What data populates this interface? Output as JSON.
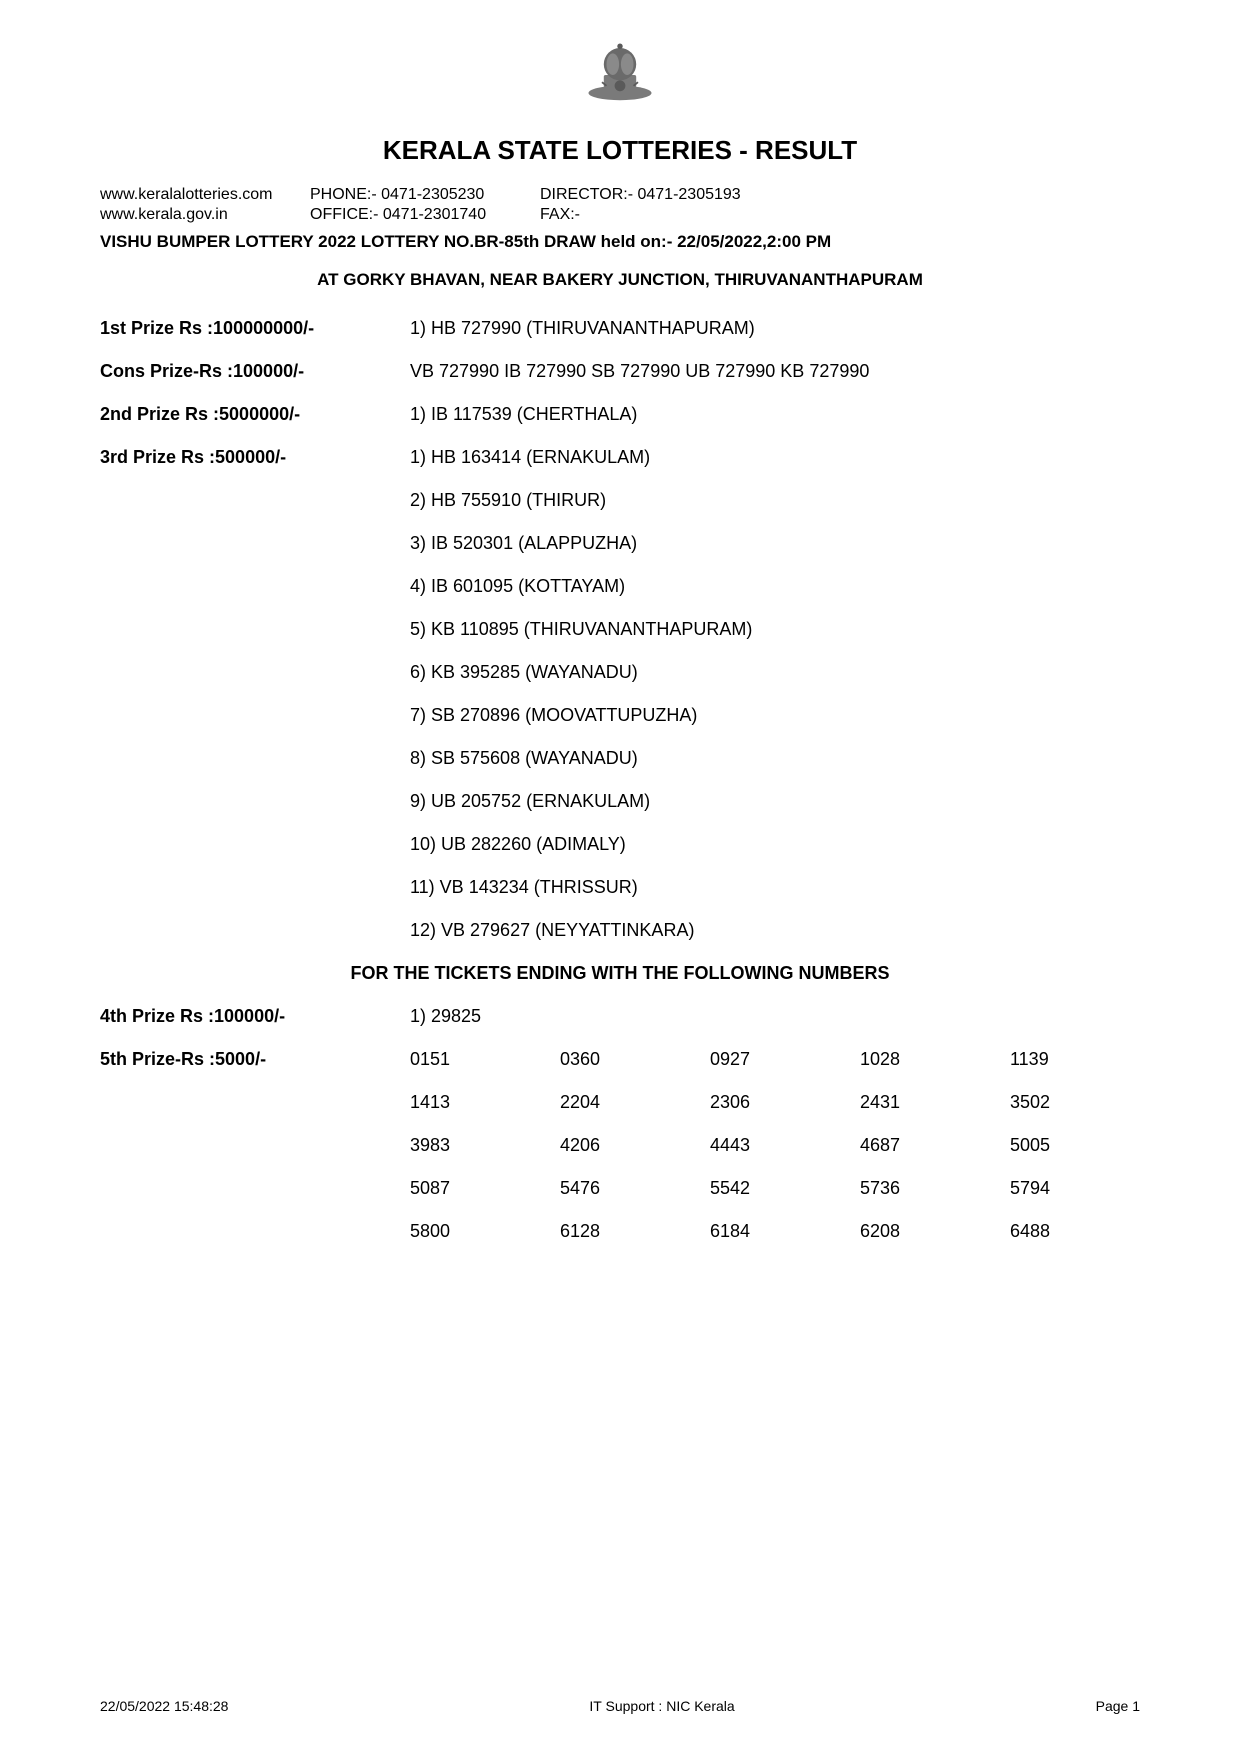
{
  "header": {
    "title": "KERALA STATE LOTTERIES - RESULT",
    "website1": "www.keralalotteries.com",
    "website2": "www.kerala.gov.in",
    "phone_label": "PHONE:- 0471-2305230",
    "office_label": "OFFICE:- 0471-2301740",
    "director_label": "DIRECTOR:- 0471-2305193",
    "fax_label": "FAX:-",
    "lottery_info": "VISHU BUMPER LOTTERY 2022   LOTTERY NO.BR-85th DRAW held on:-  22/05/2022,2:00 PM",
    "venue": "AT GORKY BHAVAN,  NEAR BAKERY JUNCTION, THIRUVANANTHAPURAM"
  },
  "prizes": {
    "first": {
      "label": "1st Prize Rs :100000000/-",
      "winners": [
        "1) HB 727990 (THIRUVANANTHAPURAM)"
      ]
    },
    "cons": {
      "label": "Cons Prize-Rs :100000/-",
      "winners": [
        "VB 727990 IB 727990 SB 727990 UB 727990 KB 727990"
      ]
    },
    "second": {
      "label": "2nd Prize Rs :5000000/-",
      "winners": [
        "1) IB 117539 (CHERTHALA)"
      ]
    },
    "third": {
      "label": "3rd Prize Rs :500000/-",
      "winners": [
        "1) HB 163414 (ERNAKULAM)",
        "2) HB 755910 (THIRUR)",
        "3) IB 520301 (ALAPPUZHA)",
        "4) IB 601095 (KOTTAYAM)",
        "5) KB 110895 (THIRUVANANTHAPURAM)",
        "6) KB 395285 (WAYANADU)",
        "7) SB 270896 (MOOVATTUPUZHA)",
        "8) SB 575608 (WAYANADU)",
        "9) UB 205752 (ERNAKULAM)",
        "10) UB 282260 (ADIMALY)",
        "11) VB 143234 (THRISSUR)",
        "12) VB 279627 (NEYYATTINKARA)"
      ]
    },
    "section_header": "FOR THE TICKETS ENDING WITH THE FOLLOWING NUMBERS",
    "fourth": {
      "label": "4th Prize Rs :100000/-",
      "winners": [
        "1) 29825"
      ]
    },
    "fifth": {
      "label": "5th Prize-Rs :5000/-",
      "numbers": [
        "0151",
        "0360",
        "0927",
        "1028",
        "1139",
        "1413",
        "2204",
        "2306",
        "2431",
        "3502",
        "3983",
        "4206",
        "4443",
        "4687",
        "5005",
        "5087",
        "5476",
        "5542",
        "5736",
        "5794",
        "5800",
        "6128",
        "6184",
        "6208",
        "6488"
      ]
    }
  },
  "footer": {
    "timestamp": "22/05/2022 15:48:28",
    "support": "IT Support : NIC Kerala",
    "page": "Page 1"
  },
  "colors": {
    "background": "#ffffff",
    "text": "#000000",
    "emblem_fill": "#7a7a7a"
  }
}
